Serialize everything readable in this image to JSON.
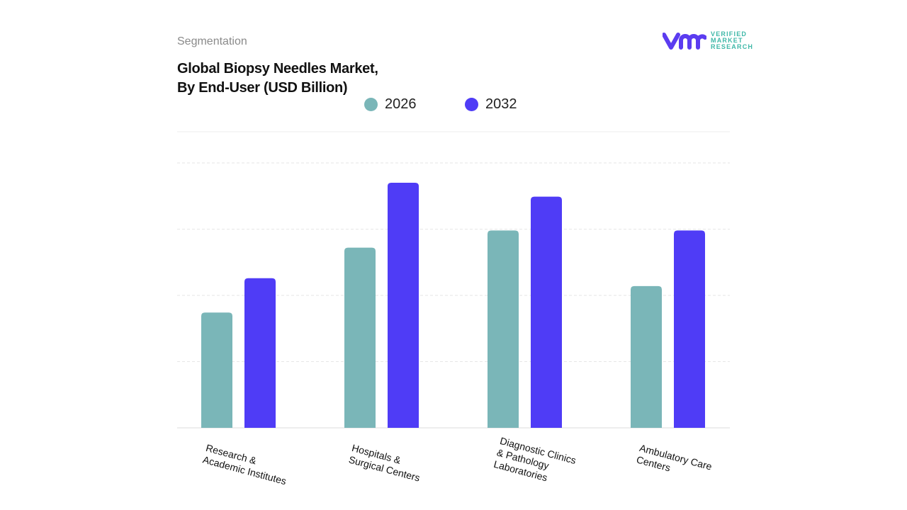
{
  "header": {
    "section": "Segmentation",
    "title_line1": "Global Biopsy Needles Market,",
    "title_line2": "By End-User (USD Billion)"
  },
  "logo": {
    "line1": "VERIFIED",
    "line2": "MARKET",
    "line3": "RESEARCH",
    "mark": "vmr"
  },
  "chart_data": {
    "type": "bar",
    "title": "Global Biopsy Needles Market, By End-User (USD Billion)",
    "categories": [
      "Research &\nAcademic Institutes",
      "Hospitals &\nSurgical Centers",
      "Diagnostic Clinics\n& Pathology\nLaboratories",
      "Ambulatory Care\nCenters"
    ],
    "series": [
      {
        "name": "2026",
        "color": "#7ab6b8",
        "values": [
          1.74,
          2.72,
          2.98,
          2.14
        ]
      },
      {
        "name": "2032",
        "color": "#4f3cf6",
        "values": [
          2.26,
          3.7,
          3.49,
          2.98
        ]
      }
    ],
    "ylim": [
      0,
      4
    ],
    "grid": true,
    "legend": "top-center",
    "y_tick_labels_shown": false
  }
}
